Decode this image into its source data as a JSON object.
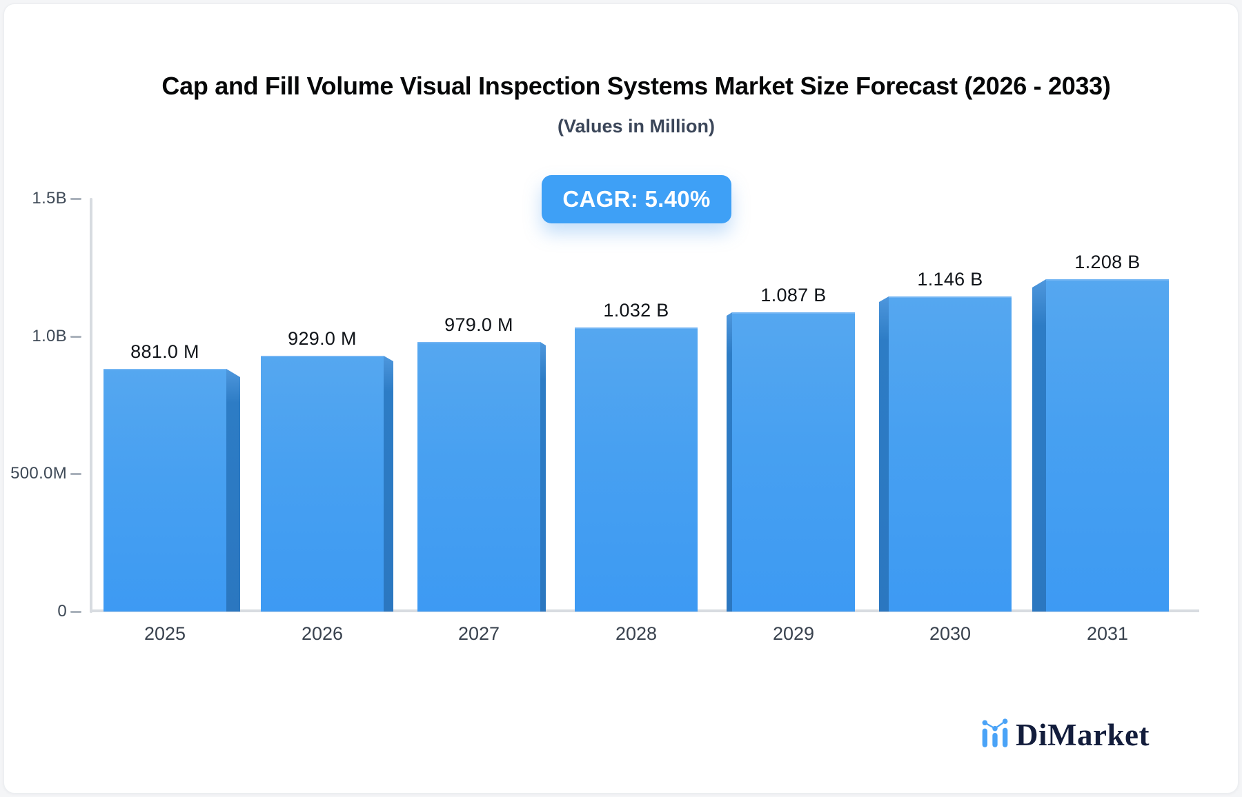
{
  "header": {
    "title": "Cap and Fill Volume Visual Inspection Systems Market Size Forecast (2026 - 2033)",
    "subtitle": "(Values in Million)",
    "cagr_badge_label": "CAGR: 5.40%"
  },
  "brand": {
    "name": "DiMarket",
    "icon": "mini-bar-chart-icon"
  },
  "colors": {
    "badge_blue": "#3ea0f6",
    "bar_face_top": "#55a7f0",
    "bar_face_bottom": "#3d9af3",
    "bar_side_dark": "#2d7cc5",
    "bar_side_light": "#4e97dd",
    "axis_line": "#d8dce1",
    "tick_text": "#3e4956",
    "brand_navy": "#131d3c"
  },
  "chart_data": {
    "type": "bar",
    "title": "Cap and Fill Volume Visual Inspection Systems Market Size Forecast (2026 - 2033)",
    "subtitle": "(Values in Million)",
    "annotation": "CAGR: 5.40%",
    "categories": [
      "2025",
      "2026",
      "2027",
      "2028",
      "2029",
      "2030",
      "2031"
    ],
    "values_millions": [
      881,
      929,
      979,
      1032,
      1087,
      1146,
      1208
    ],
    "value_labels": [
      "881.0 M",
      "929.0 M",
      "979.0 M",
      "1.032 B",
      "1.087 B",
      "1.146 B",
      "1.208 B"
    ],
    "xlabel": "",
    "ylabel": "",
    "y_ticks": [
      {
        "label": "0",
        "value_millions": 0
      },
      {
        "label": "500.0M",
        "value_millions": 500
      },
      {
        "label": "1.0B",
        "value_millions": 1000
      },
      {
        "label": "1.5B",
        "value_millions": 1500
      }
    ],
    "ylim": [
      0,
      1500
    ],
    "grid": false,
    "legend": false,
    "style": "3d-extruded-bars, perspective toward center"
  }
}
